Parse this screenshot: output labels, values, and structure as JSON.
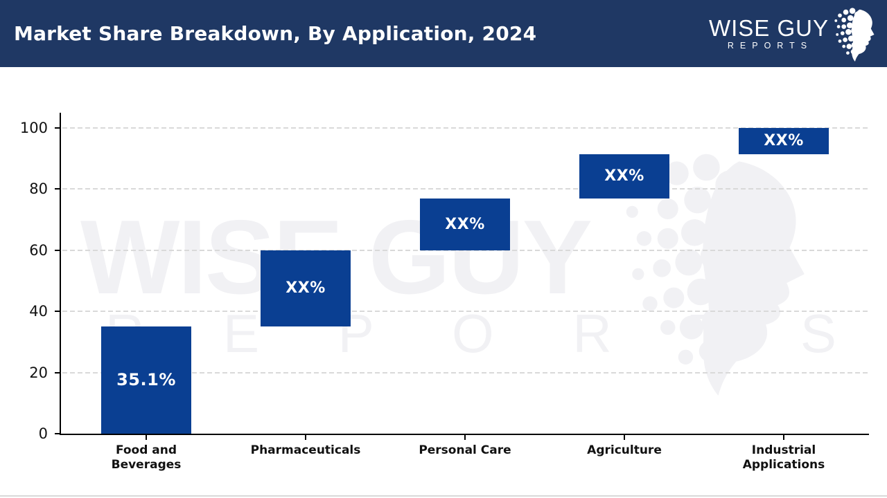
{
  "header": {
    "title": "Market Share Breakdown, By Application, 2024",
    "logo": {
      "wordmark": "WISE GUY",
      "subtext": "REPORTS"
    }
  },
  "watermark": {
    "wordmark": "WISE GUY",
    "subtext": "R E P O R T S"
  },
  "colors": {
    "header_bg": "#1f3864",
    "bar": "#0a3f92",
    "bar_label": "#ffffff",
    "grid": "#d9d9d9",
    "axis": "#000000",
    "tick_label": "#111111",
    "watermark": "#f1f1f4"
  },
  "chart_data": {
    "type": "bar",
    "subtype": "floating-waterfall",
    "title": "Market Share Breakdown, By Application, 2024",
    "categories": [
      "Food and Beverages",
      "Pharmaceuticals",
      "Personal Care",
      "Agriculture",
      "Industrial Applications"
    ],
    "series": [
      {
        "name": "Market share (%)",
        "segments": [
          {
            "category": "Food and Beverages",
            "start": 0,
            "end": 35.1,
            "label": "35.1%"
          },
          {
            "category": "Pharmaceuticals",
            "start": 35.1,
            "end": 60,
            "label": "XX%"
          },
          {
            "category": "Personal Care",
            "start": 60,
            "end": 77,
            "label": "XX%"
          },
          {
            "category": "Agriculture",
            "start": 77,
            "end": 91.5,
            "label": "XX%"
          },
          {
            "category": "Industrial Applications",
            "start": 91.5,
            "end": 100,
            "label": "XX%"
          }
        ]
      }
    ],
    "xlabel": "",
    "ylabel": "",
    "yticks": [
      0,
      20,
      40,
      60,
      80,
      100
    ],
    "ylim": [
      0,
      105
    ],
    "grid": "horizontal dashed",
    "legend": "none"
  }
}
